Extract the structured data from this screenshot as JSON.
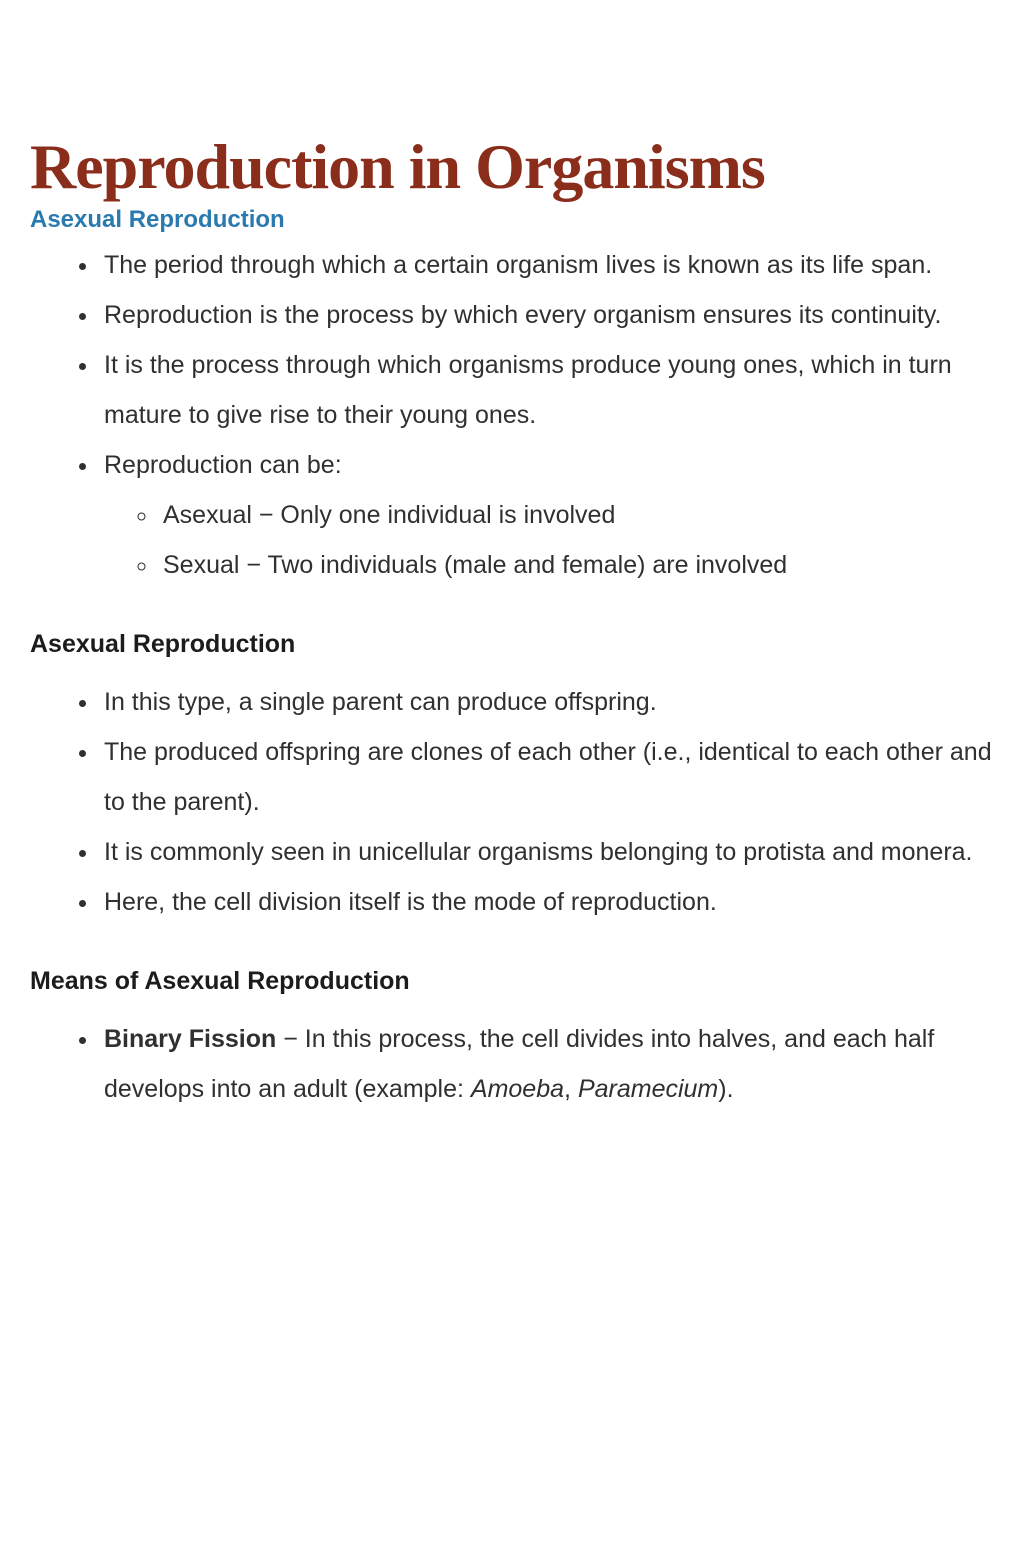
{
  "title": "Reproduction in Organisms",
  "subtitle": "Asexual Reproduction",
  "colors": {
    "title": "#8a2d1b",
    "subtitle": "#2a7ab0",
    "body_text": "#303030",
    "heading_text": "#1c1c1c",
    "background": "#ffffff"
  },
  "typography": {
    "title_font": "Times New Roman",
    "title_size_pt": 48,
    "subtitle_size_pt": 18,
    "body_font": "Verdana",
    "body_size_pt": 19,
    "heading_size_pt": 19,
    "line_height": 2.0
  },
  "intro_list": {
    "items": [
      "The period through which a certain organism lives is known as its life span.",
      "Reproduction is the process by which every organism ensures its continuity.",
      "It is the process through which organisms produce young ones, which in turn mature to give rise to their young ones.",
      "Reproduction can be:"
    ],
    "sublist": [
      "Asexual − Only one individual is involved",
      "Sexual − Two individuals (male and female) are involved"
    ]
  },
  "section2": {
    "heading": "Asexual Reproduction",
    "items": [
      "In this type, a single parent can produce offspring.",
      "The produced offspring are clones of each other (i.e., identical to each other and to the parent).",
      "It is commonly seen in unicellular organisms belonging to protista and monera.",
      "Here, the cell division itself is the mode of reproduction."
    ]
  },
  "section3": {
    "heading": "Means of Asexual Reproduction",
    "item_prefix_bold": "Binary Fission",
    "item_middle": " − In this process, the cell divides into halves, and each half develops into an adult (example: ",
    "item_italic": "Amoeba",
    "item_sep": ", ",
    "item_italic2": "Paramecium",
    "item_suffix": ")."
  }
}
